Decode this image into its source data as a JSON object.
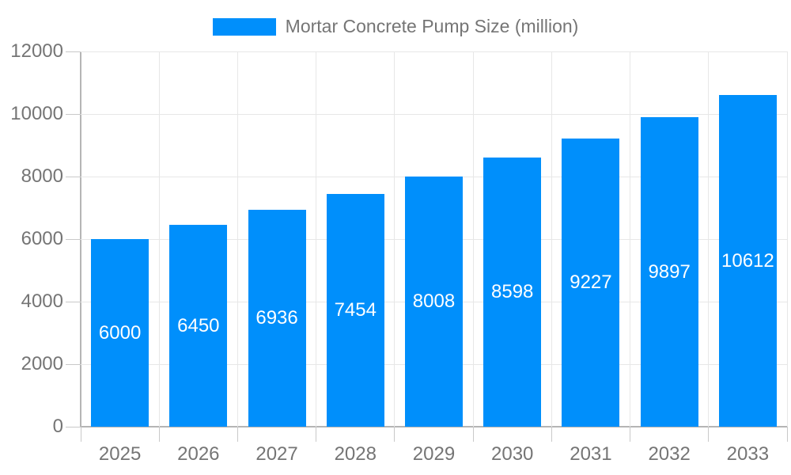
{
  "legend": {
    "label": "Mortar Concrete Pump Size (million)"
  },
  "chart_data": {
    "type": "bar",
    "title": "Mortar Concrete Pump Size (million)",
    "series_name": "Mortar Concrete Pump Size (million)",
    "categories": [
      "2025",
      "2026",
      "2027",
      "2028",
      "2029",
      "2030",
      "2031",
      "2032",
      "2033"
    ],
    "values": [
      6000,
      6450,
      6936,
      7454,
      8008,
      8598,
      9227,
      9897,
      10612
    ],
    "xlabel": "",
    "ylabel": "",
    "ylim": [
      0,
      12000
    ],
    "ytick_step": 2000,
    "ytick_labels": [
      "0",
      "2000",
      "4000",
      "6000",
      "8000",
      "10000",
      "12000"
    ],
    "legend_position": "top",
    "grid": true,
    "bar_value_labels": "inside-center",
    "colors": {
      "bar": "#008ffb",
      "bar_label": "#ffffff",
      "axis_text": "#757575",
      "legend_text": "#757575",
      "gridline": "#e7e7e7",
      "axis_line": "#b5b5b5",
      "background": "#ffffff"
    }
  }
}
